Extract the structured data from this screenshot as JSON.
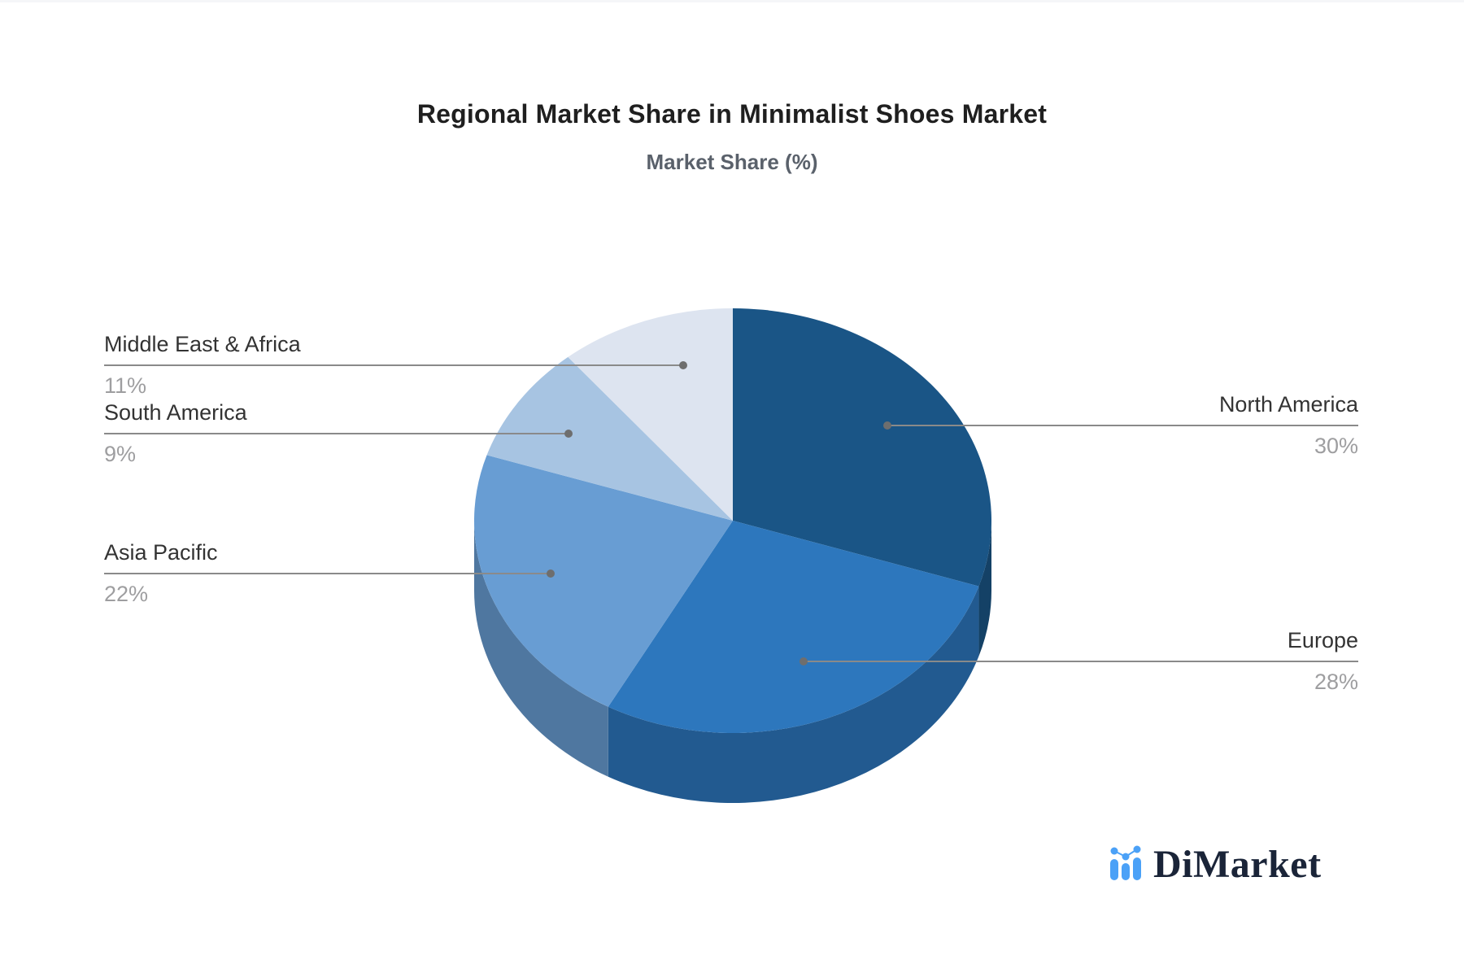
{
  "page": {
    "background_color": "#ffffff",
    "top_strip_color": "#f5f6f8"
  },
  "chart_data": {
    "type": "pie",
    "title": "Regional Market Share in Minimalist Shoes Market",
    "subtitle": "Market Share (%)",
    "is_3d": true,
    "start_angle_deg": 0,
    "direction": "clockwise",
    "value_suffix": "%",
    "legend": "none",
    "slices": [
      {
        "label": "North America",
        "value": 30,
        "pct_text": "30%",
        "color": "#1A5586",
        "labeled_side": "right"
      },
      {
        "label": "Europe",
        "value": 28,
        "pct_text": "28%",
        "color": "#2D77BD",
        "labeled_side": "right"
      },
      {
        "label": "Asia Pacific",
        "value": 22,
        "pct_text": "22%",
        "color": "#689DD3",
        "labeled_side": "left"
      },
      {
        "label": "South America",
        "value": 9,
        "pct_text": "9%",
        "color": "#A7C4E2",
        "labeled_side": "left"
      },
      {
        "label": "Middle East & Africa",
        "value": 11,
        "pct_text": "11%",
        "color": "#DDE4F0",
        "labeled_side": "left"
      }
    ],
    "label_text_color": "#333333",
    "value_text_color": "#9e9ea0",
    "connector_line_color": "#8a8a8a",
    "connector_dot_color": "#6e6e6e"
  },
  "branding": {
    "logo_text": "DiMarket",
    "logo_icon": "bar-chart-sparkline-icon",
    "icon_color": "#4BA1F7",
    "text_color": "#1A2438"
  }
}
